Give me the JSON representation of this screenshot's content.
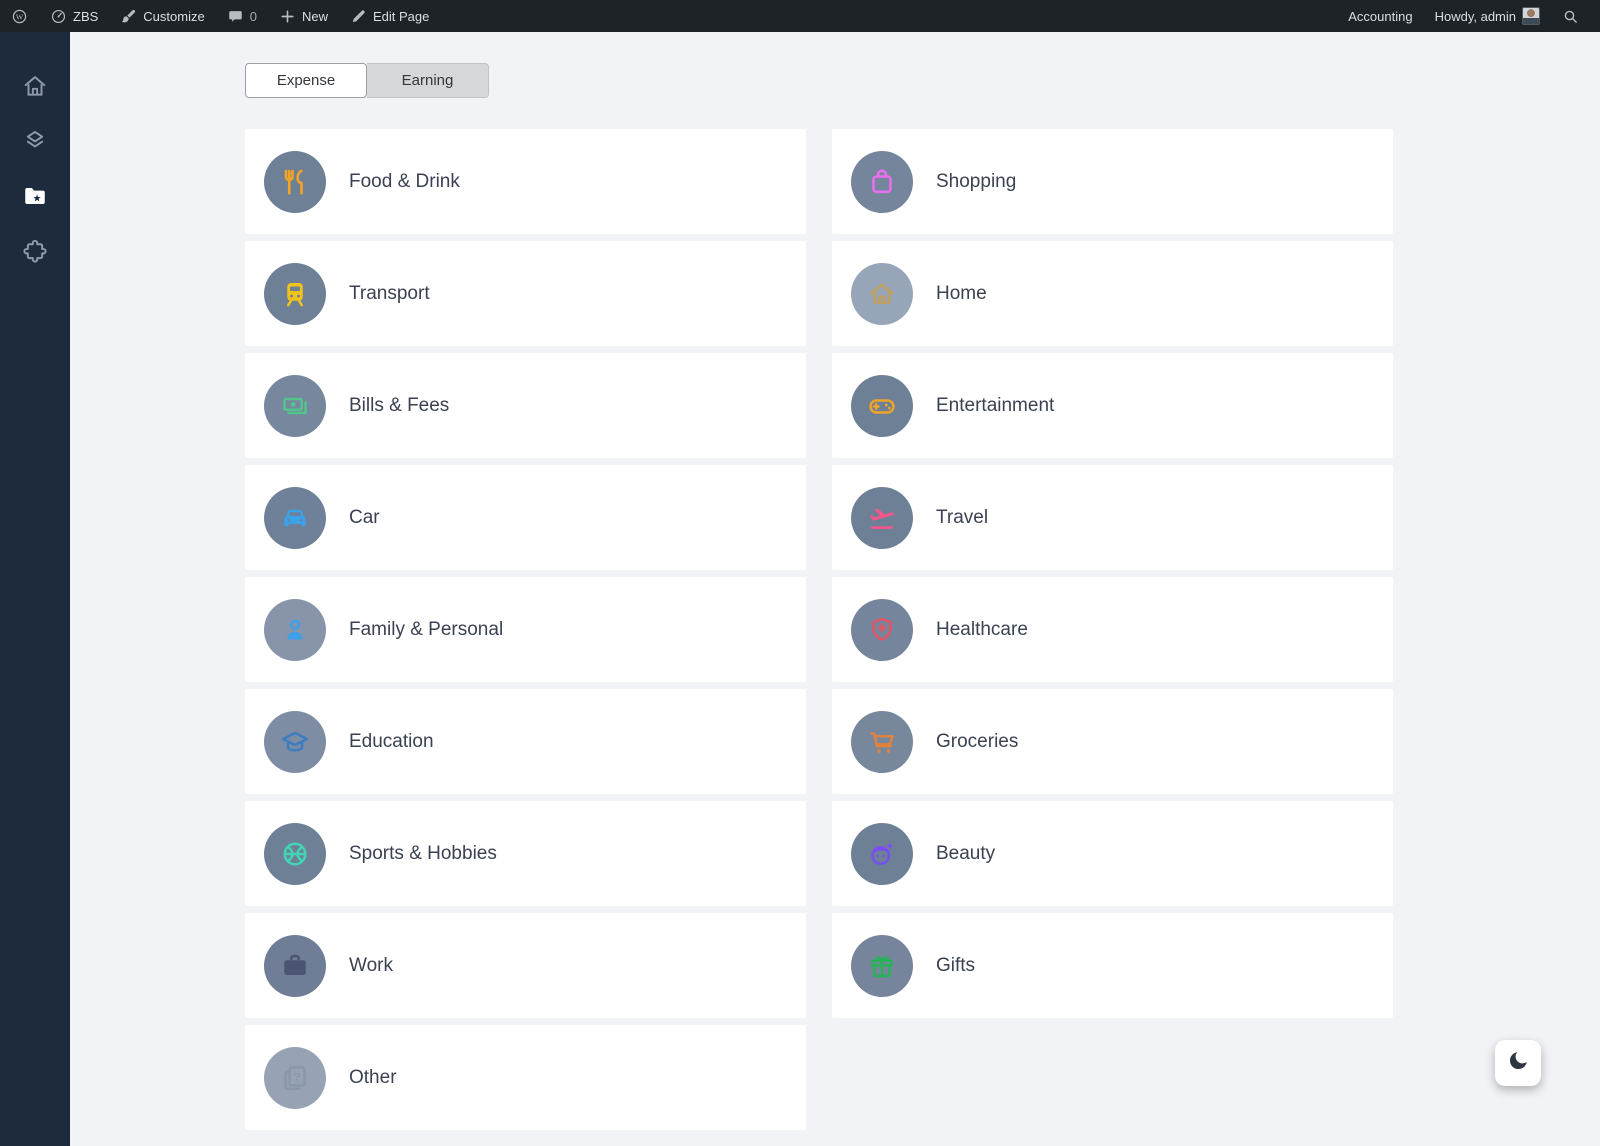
{
  "admin_bar": {
    "site_name": "ZBS",
    "customize_label": "Customize",
    "comments_count": "0",
    "new_label": "New",
    "edit_page_label": "Edit Page",
    "accounting_label": "Accounting",
    "howdy_label": "Howdy, admin"
  },
  "sidebar": {
    "items": [
      {
        "name": "home",
        "icon": "home-nav-icon",
        "active": false
      },
      {
        "name": "layers",
        "icon": "layers-icon",
        "active": false
      },
      {
        "name": "folder-star",
        "icon": "folder-star-icon",
        "active": true
      },
      {
        "name": "puzzle",
        "icon": "puzzle-icon",
        "active": false
      }
    ]
  },
  "tabs": [
    {
      "label": "Expense",
      "active": true
    },
    {
      "label": "Earning",
      "active": false
    }
  ],
  "categories": {
    "left": [
      {
        "label": "Food & Drink",
        "icon": "fork-knife-icon",
        "icon_color": "#f5a322",
        "circle_color": "#6e8096"
      },
      {
        "label": "Transport",
        "icon": "train-icon",
        "icon_color": "#f0c21b",
        "circle_color": "#6e8096"
      },
      {
        "label": "Bills & Fees",
        "icon": "banknotes-icon",
        "icon_color": "#52c48e",
        "circle_color": "#77879d"
      },
      {
        "label": "Car",
        "icon": "car-icon",
        "icon_color": "#39a2e9",
        "circle_color": "#6f8198"
      },
      {
        "label": "Family & Personal",
        "icon": "person-icon",
        "icon_color": "#3f9fe8",
        "circle_color": "#8794aa"
      },
      {
        "label": "Education",
        "icon": "graduation-cap-icon",
        "icon_color": "#3d7dc4",
        "circle_color": "#7e8da3"
      },
      {
        "label": "Sports & Hobbies",
        "icon": "basketball-icon",
        "icon_color": "#42d5b4",
        "circle_color": "#6e8096"
      },
      {
        "label": "Work",
        "icon": "briefcase-icon",
        "icon_color": "#4b5572",
        "circle_color": "#6f7d96"
      },
      {
        "label": "Other",
        "icon": "question-cards-icon",
        "icon_color": "#8a97a8",
        "circle_color": "#97a3b4"
      }
    ],
    "right": [
      {
        "label": "Shopping",
        "icon": "shopping-bag-icon",
        "icon_color": "#e96ef1",
        "circle_color": "#75859b"
      },
      {
        "label": "Home",
        "icon": "house-icon",
        "icon_color": "#bfa05f",
        "circle_color": "#97a5b9"
      },
      {
        "label": "Entertainment",
        "icon": "game-controller-icon",
        "icon_color": "#f0a32a",
        "circle_color": "#6e8096"
      },
      {
        "label": "Travel",
        "icon": "plane-takeoff-icon",
        "icon_color": "#f4568a",
        "circle_color": "#6e8096"
      },
      {
        "label": "Healthcare",
        "icon": "shield-cross-icon",
        "icon_color": "#e15565",
        "circle_color": "#75859b"
      },
      {
        "label": "Groceries",
        "icon": "cart-icon",
        "icon_color": "#df813f",
        "circle_color": "#77889d"
      },
      {
        "label": "Beauty",
        "icon": "face-sparkle-icon",
        "icon_color": "#7a4ff0",
        "circle_color": "#6e8096"
      },
      {
        "label": "Gifts",
        "icon": "gift-icon",
        "icon_color": "#26b356",
        "circle_color": "#76859b"
      }
    ]
  },
  "dark_mode_toggle": {
    "icon": "moon-icon"
  }
}
